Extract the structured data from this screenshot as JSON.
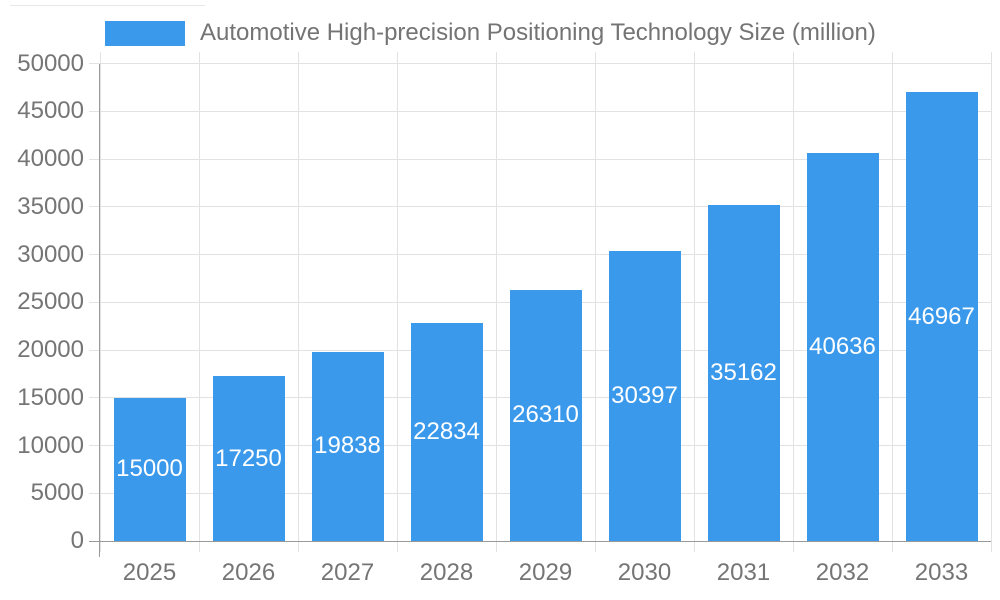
{
  "legend": {
    "label": "Automotive High-precision Positioning Technology Size (million)"
  },
  "chart_data": {
    "type": "bar",
    "title": "Automotive High-precision Positioning Technology Size (million)",
    "categories": [
      "2025",
      "2026",
      "2027",
      "2028",
      "2029",
      "2030",
      "2031",
      "2032",
      "2033"
    ],
    "values": [
      15000,
      17250,
      19838,
      22834,
      26310,
      30397,
      35162,
      40636,
      46967
    ],
    "xlabel": "",
    "ylabel": "",
    "ylim": [
      0,
      50000
    ],
    "ytick_step": 5000,
    "ytick_labels": [
      "0",
      "5000",
      "10000",
      "15000",
      "20000",
      "25000",
      "30000",
      "35000",
      "40000",
      "45000",
      "50000"
    ],
    "grid": "horizontal-and-vertical",
    "legend_position": "top-left",
    "bar_color": "#3b99ec",
    "value_label_color": "#ffffff",
    "axis_label_color": "#757575",
    "grid_color": "#e2e2e2",
    "axis_line_color": "#999999",
    "background_color": "#ffffff"
  }
}
